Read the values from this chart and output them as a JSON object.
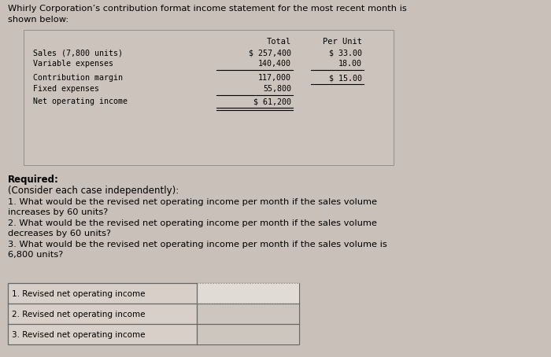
{
  "bg_color": "#c9c1b9",
  "title_text": "Whirly Corporation’s contribution format income statement for the most recent month is shown below:",
  "table_header_total": "Total",
  "table_header_per_unit": "Per Unit",
  "table_rows": [
    {
      "label": "Sales (7,800 units)",
      "total": "$ 257,400",
      "per_unit": "$ 33.00",
      "underline_total": false,
      "underline_pu": false
    },
    {
      "label": "Variable expenses",
      "total": "140,400",
      "per_unit": "18.00",
      "underline_total": true,
      "underline_pu": true
    },
    {
      "label": "Contribution margin",
      "total": "117,000",
      "per_unit": "$ 15.00",
      "underline_total": false,
      "underline_pu": true
    },
    {
      "label": "Fixed expenses",
      "total": "55,800",
      "per_unit": "",
      "underline_total": true,
      "underline_pu": false
    },
    {
      "label": "Net operating income",
      "total": "$ 61,200",
      "per_unit": "",
      "underline_total": true,
      "underline_pu": false,
      "double_underline": true
    }
  ],
  "required_text": "Required:",
  "consider_text": "(Consider each case independently):",
  "questions": [
    "1. What would be the revised net operating income per month if the sales volume increases by 60 units?",
    "2. What would be the revised net operating income per month if the sales volume decreases by 60 units?",
    "3. What would be the revised net operating income per month if the sales volume is 6,800 units?"
  ],
  "answer_labels": [
    "1. Revised net operating income",
    "2. Revised net operating income",
    "3. Revised net operating income"
  ],
  "table_bg": "#ccc4bc",
  "font_mono": "DejaVu Sans Mono",
  "font_sans": "DejaVu Sans"
}
